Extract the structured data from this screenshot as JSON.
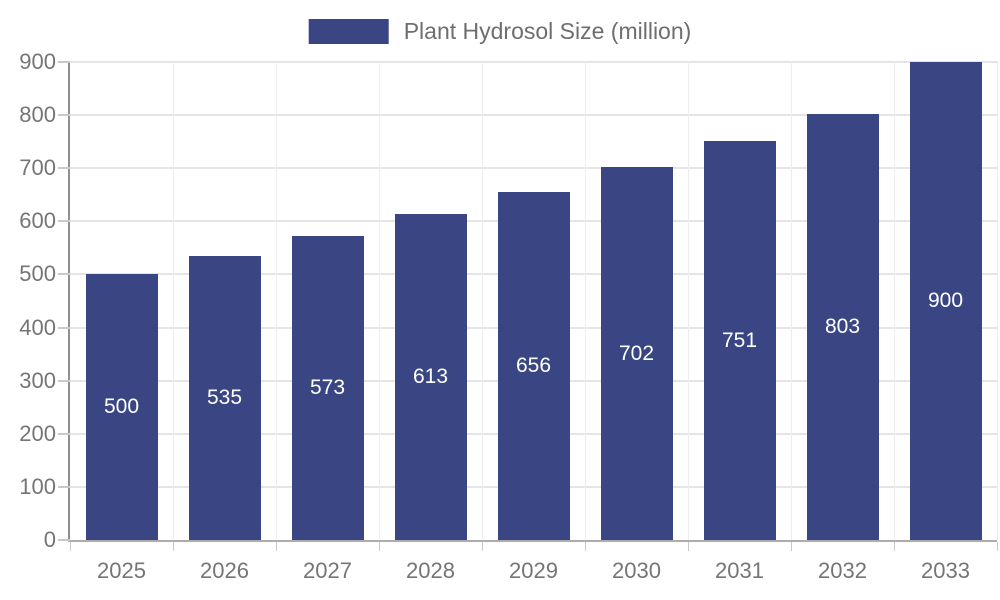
{
  "legend": {
    "label": "Plant Hydrosol Size (million)"
  },
  "chart_data": {
    "type": "bar",
    "title": "",
    "series_name": "Plant Hydrosol Size (million)",
    "categories": [
      "2025",
      "2026",
      "2027",
      "2028",
      "2029",
      "2030",
      "2031",
      "2032",
      "2033"
    ],
    "values": [
      500,
      535,
      573,
      613,
      656,
      702,
      751,
      803,
      900
    ],
    "xlabel": "",
    "ylabel": "",
    "ylim": [
      0,
      900
    ],
    "ytick_step": 100,
    "ytick_labels": [
      "0",
      "100",
      "200",
      "300",
      "400",
      "500",
      "600",
      "700",
      "800",
      "900"
    ],
    "grid": true,
    "legend_position": "top-center",
    "value_labels": "inside-center",
    "colors": {
      "bar": "#3A4683",
      "value_label": "#FFFFFF",
      "axis_text": "#757575",
      "legend_text": "#6E6E6E",
      "gridline": "#E4E4E9",
      "axis_line": "#8F8F8F",
      "background": "#FFFFFF"
    }
  }
}
